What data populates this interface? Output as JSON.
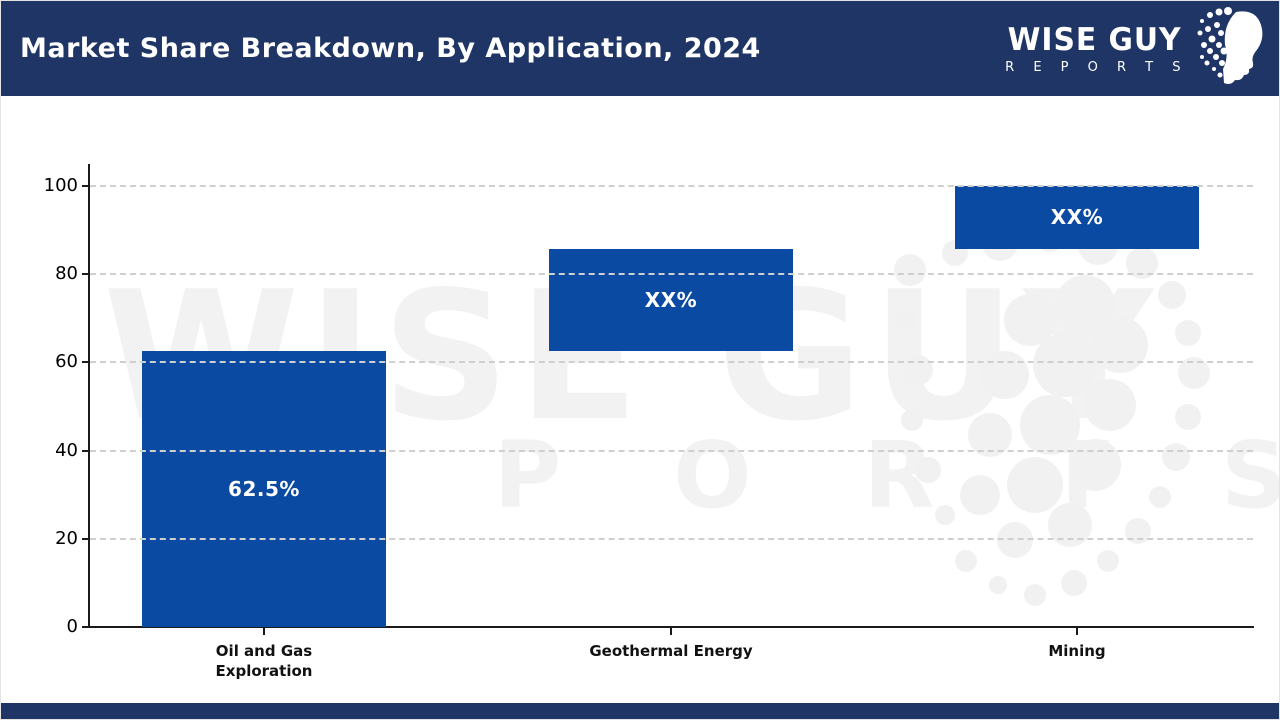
{
  "header": {
    "title": "Market Share Breakdown, By Application, 2024",
    "logo": {
      "line1": "WISE GUY",
      "line2": "R E P O R T S"
    }
  },
  "watermark": {
    "line1": "WISE GUY",
    "line2": "R E P O R T S"
  },
  "colors": {
    "header_bg": "#1F3565",
    "bar": "#0B4AA2",
    "gridline": "#cfcfcf",
    "watermark": "#f2f2f2"
  },
  "chart_data": {
    "type": "bar",
    "variant": "floating-waterfall",
    "title": "Market Share Breakdown, By Application, 2024",
    "xlabel": "",
    "ylabel": "",
    "ylim": [
      0,
      100
    ],
    "yticks": [
      0,
      20,
      40,
      60,
      80,
      100
    ],
    "grid": "horizontal-dashed",
    "legend": "none",
    "categories": [
      "Oil and Gas Exploration",
      "Geothermal Energy",
      "Mining"
    ],
    "series": [
      {
        "name": "Market Share (%)",
        "ranges": [
          [
            0,
            62.5
          ],
          [
            62.5,
            85.8
          ],
          [
            85.8,
            100
          ]
        ],
        "labels": [
          "62.5%",
          "XX%",
          "XX%"
        ]
      }
    ]
  }
}
